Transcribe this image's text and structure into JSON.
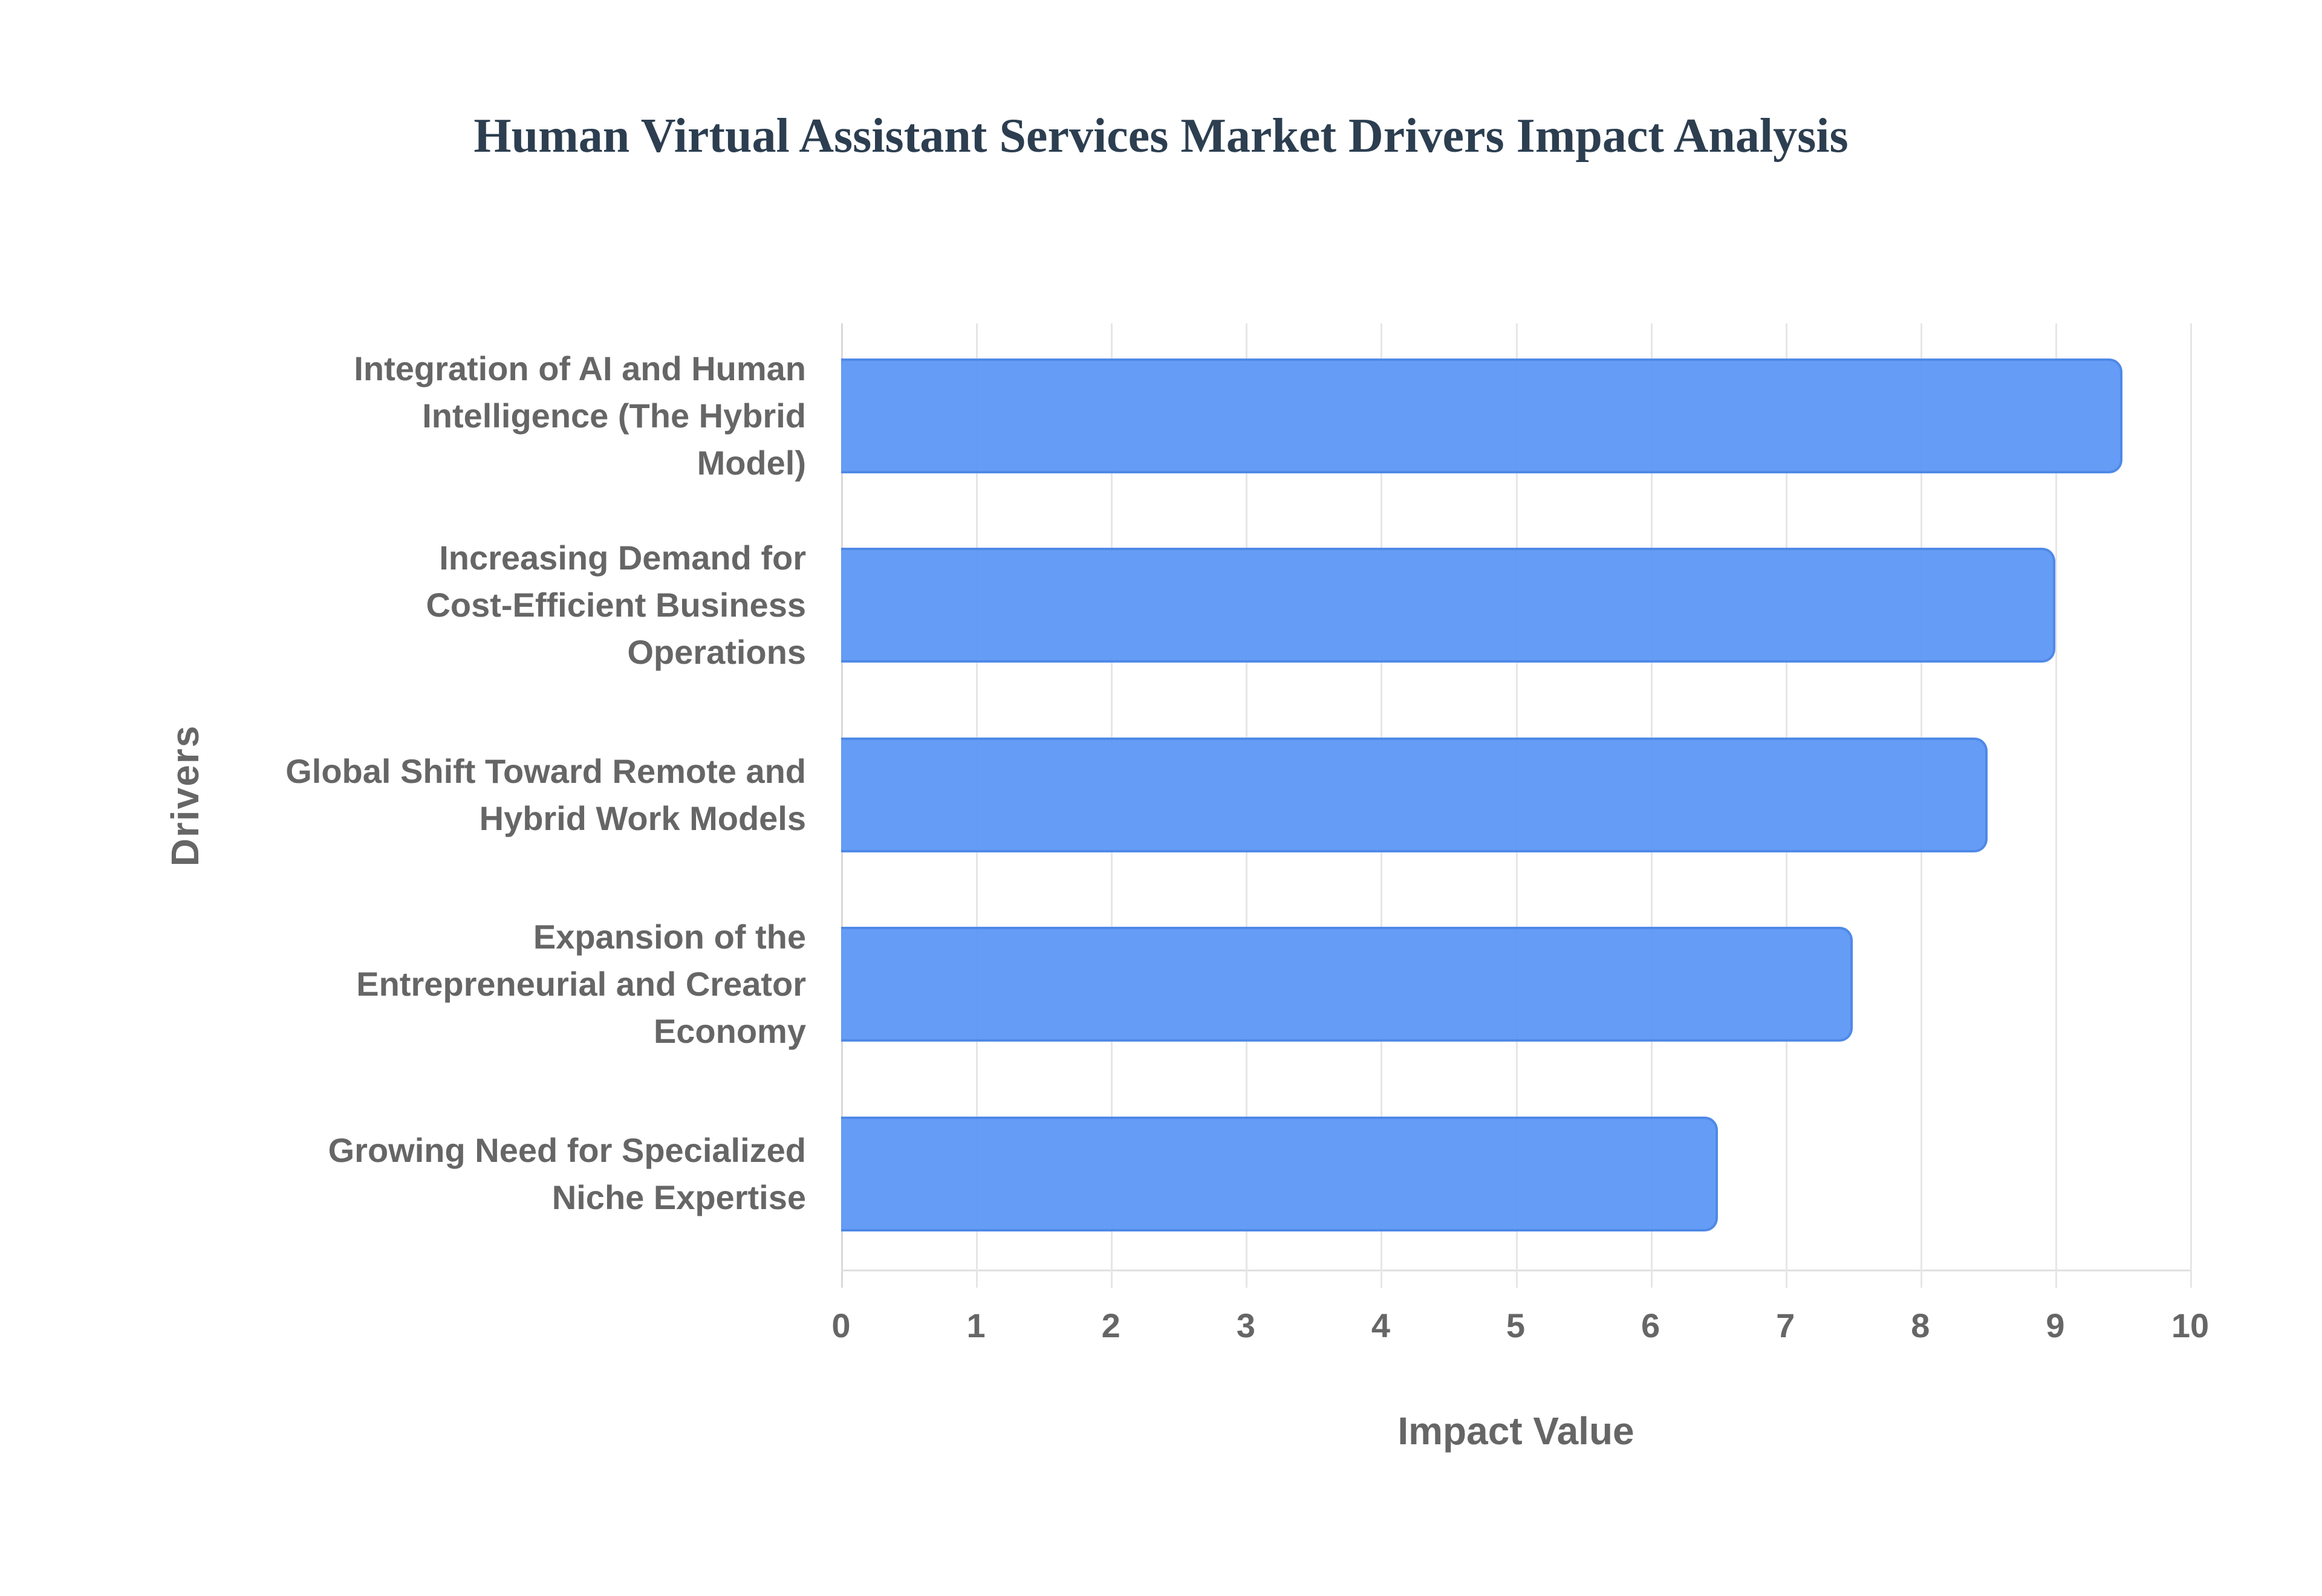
{
  "chart_data": {
    "type": "bar",
    "orientation": "horizontal",
    "title": "Human Virtual Assistant Services Market Drivers Impact Analysis",
    "xlabel": "Impact Value",
    "ylabel": "Drivers",
    "categories": [
      "Integration of AI and Human Intelligence (The Hybrid Model)",
      "Increasing Demand for Cost-Efficient Business Operations",
      "Global Shift Toward Remote and Hybrid Work Models",
      "Expansion of the Entrepreneurial and Creator Economy",
      "Growing Need for Specialized Niche Expertise"
    ],
    "values": [
      9.5,
      9.0,
      8.5,
      7.5,
      6.5
    ],
    "xlim": [
      0,
      10
    ],
    "xticks": [
      "0",
      "1",
      "2",
      "3",
      "4",
      "5",
      "6",
      "7",
      "8",
      "9",
      "10"
    ],
    "grid": true,
    "legend": null,
    "bar_color": "#6199F5",
    "bar_border_color": "#4A86E8"
  },
  "labels": [
    [
      "Integration of AI and Human",
      "Intelligence (The Hybrid",
      "Model)"
    ],
    [
      "Increasing Demand for",
      "Cost-Efficient Business",
      "Operations"
    ],
    [
      "Global Shift Toward Remote and",
      "Hybrid Work Models"
    ],
    [
      "Expansion of the",
      "Entrepreneurial and Creator",
      "Economy"
    ],
    [
      "Growing Need for Specialized",
      "Niche Expertise"
    ]
  ],
  "colors": {
    "title": "#2C3E50",
    "axis_text": "#666666",
    "grid": "#e6e6e6"
  }
}
